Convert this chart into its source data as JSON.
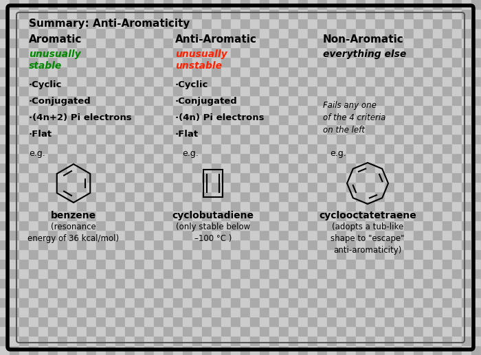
{
  "title": "Summary: Anti-Aromaticity",
  "col1_header": "Aromatic",
  "col2_header": "Anti-Aromatic",
  "col3_header": "Non-Aromatic",
  "col1_subtitle": "unusually\nstable",
  "col2_subtitle": "unusually\nunstable",
  "col3_subtitle": "everything else",
  "col1_subtitle_color": "#008800",
  "col2_subtitle_color": "#ff2200",
  "col3_subtitle_color": "#000000",
  "col1_bullets": [
    "·Cyclic",
    "·Conjugated",
    "·(4n+2) Pi electrons",
    "·Flat"
  ],
  "col2_bullets": [
    "·Cyclic",
    "·Conjugated",
    "·(4n) Pi electrons",
    "·Flat"
  ],
  "col3_note": "Fails any one\nof the 4 criteria\non the left",
  "col1_eg": "e.g.",
  "col2_eg": "e.g.",
  "col3_eg": "e.g.",
  "col1_molecule": "benzene",
  "col2_molecule": "cyclobutadiene",
  "col3_molecule": "cyclooctatetraene",
  "col1_note": "(resonance\nenergy of 36 kcal/mol)",
  "col2_note": "(only stable below\n–100 °C )",
  "col3_note2": "(adopts a tub-like\nshape to \"escape\"\nanti-aromaticity)",
  "bg_color": "#888888",
  "checker_light": "#cccccc",
  "checker_dark": "#aaaaaa",
  "text_color": "#000000",
  "title_fontsize": 11,
  "header_fontsize": 11,
  "subtitle_fontsize": 10,
  "bullet_fontsize": 9.5,
  "molecule_fontsize": 10,
  "note_fontsize": 8.5,
  "eg_fontsize": 9
}
